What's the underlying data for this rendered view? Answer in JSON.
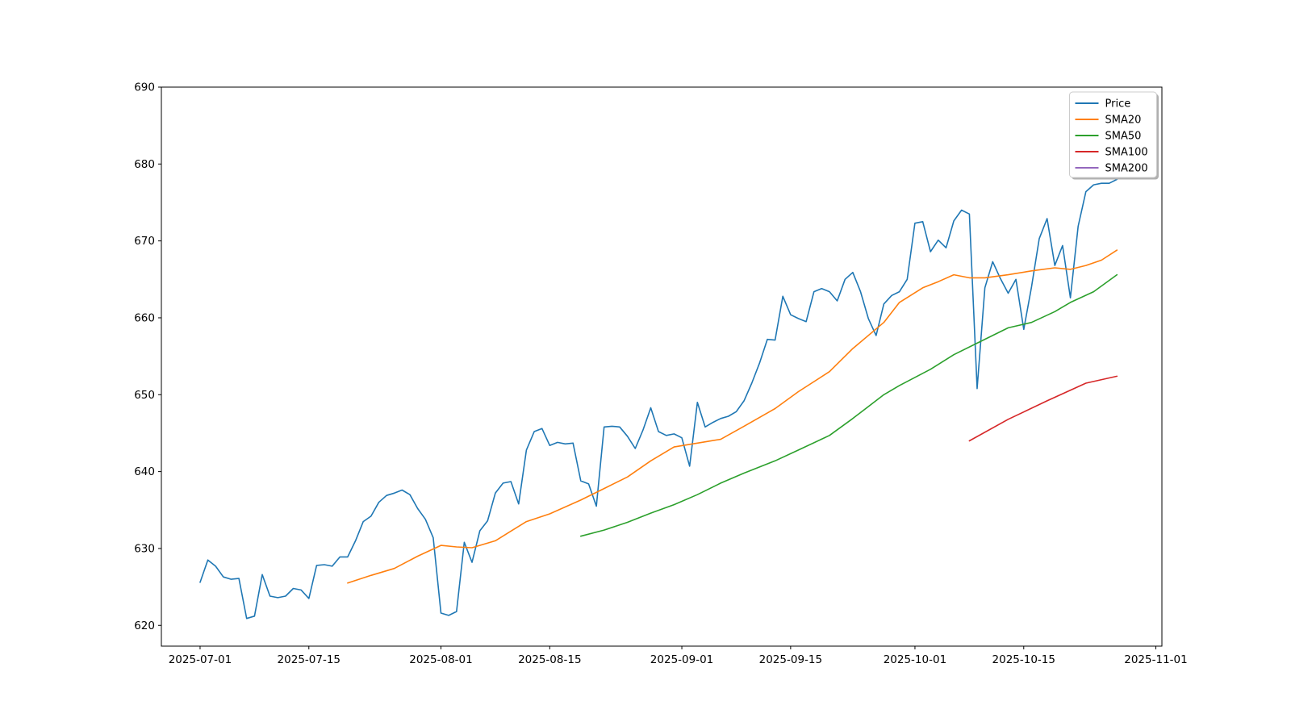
{
  "figure": {
    "background": "#ffffff",
    "title": ""
  },
  "chart_data": {
    "type": "line",
    "title": "",
    "xlabel": "",
    "ylabel": "",
    "grid": false,
    "x_axis": {
      "start_date": "2025-07-01",
      "tick_labels": [
        "2025-07-01",
        "2025-07-15",
        "2025-08-01",
        "2025-08-15",
        "2025-09-01",
        "2025-09-15",
        "2025-10-01",
        "2025-10-15",
        "2025-11-01"
      ],
      "tick_day_offsets": [
        0,
        14,
        31,
        45,
        62,
        76,
        92,
        106,
        123
      ],
      "xlim_day_offsets": [
        -4.98,
        123.78
      ]
    },
    "y_axis": {
      "tick_labels": [
        "620",
        "630",
        "640",
        "650",
        "660",
        "670",
        "680",
        "690"
      ],
      "tick_values": [
        620,
        630,
        640,
        650,
        660,
        670,
        680,
        690
      ],
      "ylim": [
        617.3,
        690
      ]
    },
    "legend": {
      "position": "upper-right",
      "entries": [
        "Price",
        "SMA20",
        "SMA50",
        "SMA100",
        "SMA200"
      ]
    },
    "series": [
      {
        "name": "Price",
        "color": "#1f77b4",
        "start_day": 0,
        "daily_values": [
          625.6,
          628.5,
          627.7,
          626.3,
          626.0,
          626.1,
          620.9,
          621.2,
          626.6,
          623.8,
          623.6,
          623.8,
          624.8,
          624.6,
          623.5,
          627.8,
          627.9,
          627.7,
          628.9,
          628.9,
          631.0,
          633.5,
          634.2,
          636.0,
          636.9,
          637.2,
          637.6,
          637.0,
          635.2,
          633.8,
          631.4,
          621.6,
          621.3,
          621.8,
          630.8,
          628.2,
          632.3,
          633.6,
          637.2,
          638.5,
          638.7,
          635.8,
          642.8,
          645.2,
          645.6,
          643.4,
          643.8,
          643.6,
          643.7,
          638.8,
          638.4,
          635.5,
          645.8,
          645.9,
          645.8,
          644.6,
          643.0,
          645.4,
          648.3,
          645.2,
          644.7,
          644.9,
          644.4,
          640.7,
          649.0,
          645.8,
          646.4,
          646.9,
          647.2,
          647.8,
          649.2,
          651.5,
          654.1,
          657.2,
          657.1,
          662.8,
          660.4,
          659.9,
          659.5,
          663.4,
          663.8,
          663.4,
          662.2,
          665.0,
          665.9,
          663.4,
          659.9,
          657.7,
          661.8,
          662.9,
          663.4,
          665.0,
          672.3,
          672.5,
          668.6,
          670.1,
          669.1,
          672.6,
          674.0,
          673.5,
          650.8,
          663.9,
          667.3,
          665.1,
          663.2,
          665.0,
          658.5,
          664.0,
          670.3,
          672.9,
          666.8,
          669.4,
          662.6,
          671.9,
          676.4,
          677.3,
          677.5,
          677.5,
          678.0
        ]
      },
      {
        "name": "SMA20",
        "color": "#ff7f0e",
        "points": [
          [
            19,
            625.5
          ],
          [
            22,
            626.5
          ],
          [
            25,
            627.4
          ],
          [
            28,
            629.0
          ],
          [
            31,
            630.4
          ],
          [
            33,
            630.2
          ],
          [
            35,
            630.1
          ],
          [
            38,
            631.0
          ],
          [
            42,
            633.5
          ],
          [
            45,
            634.5
          ],
          [
            49,
            636.3
          ],
          [
            52,
            637.8
          ],
          [
            55,
            639.3
          ],
          [
            58,
            641.4
          ],
          [
            61,
            643.2
          ],
          [
            64,
            643.7
          ],
          [
            67,
            644.2
          ],
          [
            70,
            645.9
          ],
          [
            74,
            648.2
          ],
          [
            77,
            650.4
          ],
          [
            81,
            653.0
          ],
          [
            84,
            656.0
          ],
          [
            88,
            659.4
          ],
          [
            90,
            662.0
          ],
          [
            93,
            663.9
          ],
          [
            95,
            664.7
          ],
          [
            97,
            665.6
          ],
          [
            99,
            665.2
          ],
          [
            101,
            665.2
          ],
          [
            104,
            665.6
          ],
          [
            107,
            666.1
          ],
          [
            110,
            666.5
          ],
          [
            112,
            666.3
          ],
          [
            114,
            666.8
          ],
          [
            116,
            667.5
          ],
          [
            118,
            668.8
          ]
        ]
      },
      {
        "name": "SMA50",
        "color": "#2ca02c",
        "points": [
          [
            49,
            631.6
          ],
          [
            52,
            632.4
          ],
          [
            55,
            633.4
          ],
          [
            58,
            634.6
          ],
          [
            61,
            635.7
          ],
          [
            64,
            637.0
          ],
          [
            67,
            638.5
          ],
          [
            70,
            639.8
          ],
          [
            74,
            641.4
          ],
          [
            77,
            642.8
          ],
          [
            81,
            644.7
          ],
          [
            84,
            646.9
          ],
          [
            88,
            650.0
          ],
          [
            90,
            651.2
          ],
          [
            94,
            653.3
          ],
          [
            97,
            655.2
          ],
          [
            100,
            656.7
          ],
          [
            104,
            658.7
          ],
          [
            107,
            659.4
          ],
          [
            110,
            660.8
          ],
          [
            112,
            662.0
          ],
          [
            115,
            663.4
          ],
          [
            118,
            665.6
          ]
        ]
      },
      {
        "name": "SMA100",
        "color": "#d62728",
        "points": [
          [
            99,
            644.0
          ],
          [
            104,
            646.8
          ],
          [
            109,
            649.2
          ],
          [
            114,
            651.5
          ],
          [
            118,
            652.4
          ]
        ]
      },
      {
        "name": "SMA200",
        "color": "#9467bd",
        "points": []
      }
    ]
  }
}
